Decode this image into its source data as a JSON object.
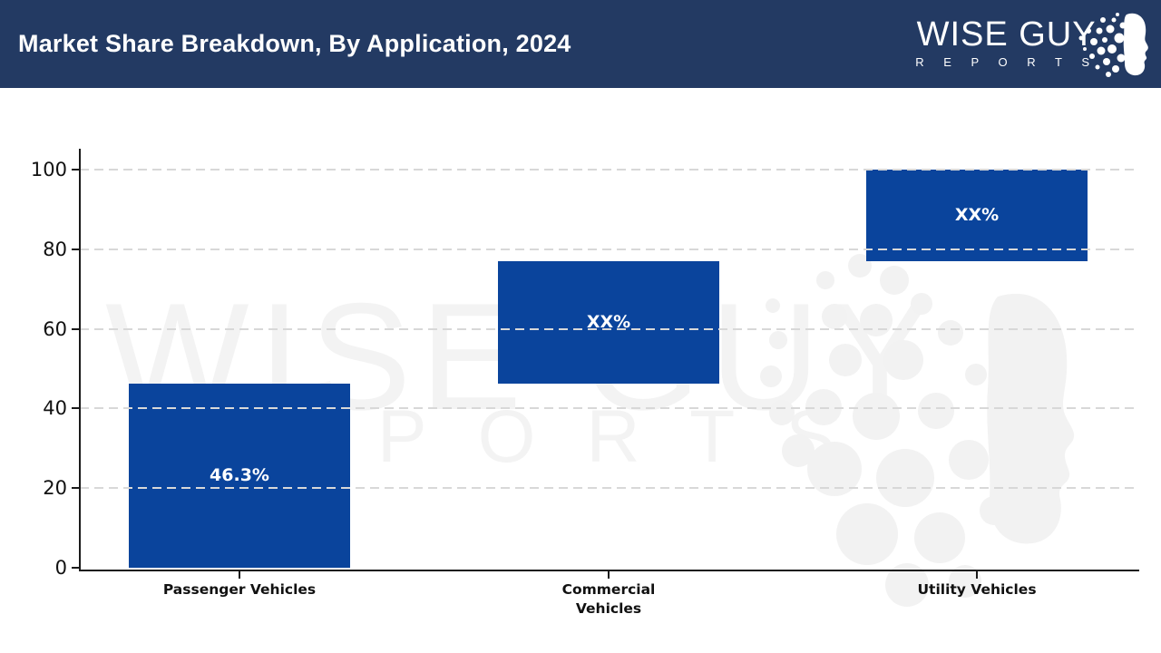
{
  "header": {
    "title": "Market Share Breakdown, By Application, 2024",
    "bg_color": "#233a63",
    "logo": {
      "line1": "WISE GUY",
      "line2": "R E P O R T S"
    }
  },
  "watermark": {
    "line1": "WISE GUY",
    "line2": "REPORTS"
  },
  "chart_data": {
    "type": "bar",
    "variant": "floating-segment-waterfall",
    "title": "Market Share Breakdown, By Application, 2024",
    "categories": [
      "Passenger Vehicles",
      "Commercial Vehicles",
      "Utility Vehicles"
    ],
    "category_lines": [
      [
        "Passenger Vehicles"
      ],
      [
        "Commercial",
        "Vehicles"
      ],
      [
        "Utility Vehicles"
      ]
    ],
    "bars": [
      {
        "category": "Passenger Vehicles",
        "start": 0,
        "end": 46.3,
        "label": "46.3%"
      },
      {
        "category": "Commercial Vehicles",
        "start": 46.3,
        "end": 77,
        "label": "XX%"
      },
      {
        "category": "Utility Vehicles",
        "start": 77,
        "end": 100,
        "label": "XX%"
      }
    ],
    "ylim": [
      0,
      100
    ],
    "yticks": [
      0,
      20,
      40,
      60,
      80,
      100
    ],
    "grid": "horizontal dashed, drawn over bars",
    "legend": "none",
    "bar_color": "#0a449c",
    "bar_label_color": "#ffffff",
    "gridline_color": "#d8d8d8",
    "axis_color": "#1a1a1a"
  }
}
